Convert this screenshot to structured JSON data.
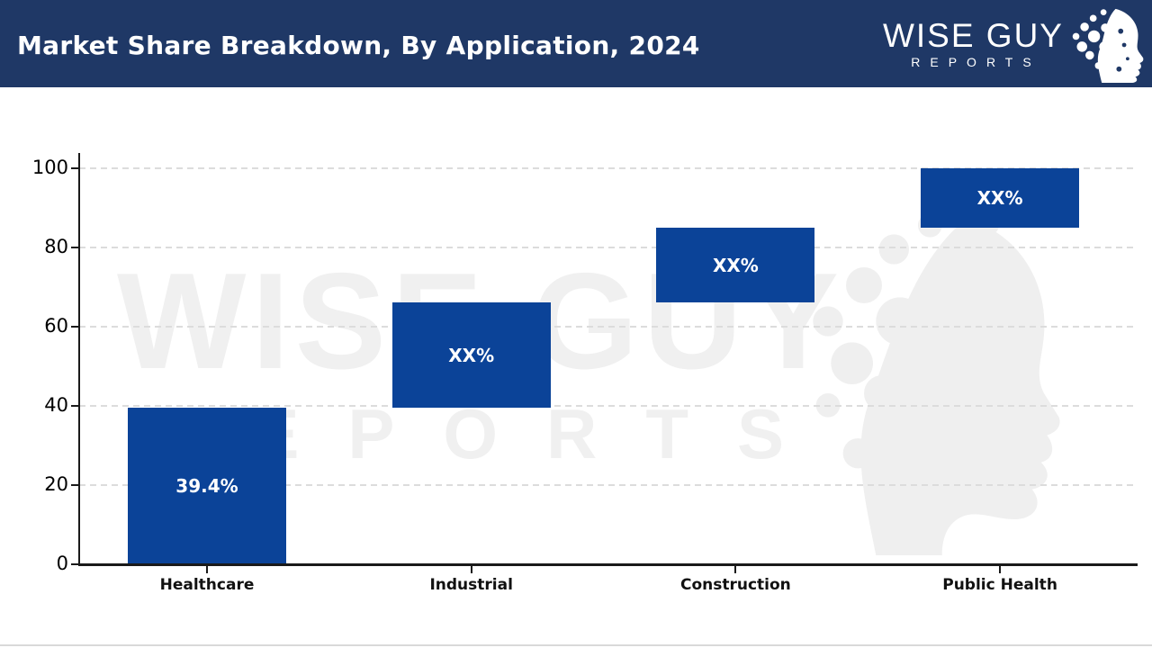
{
  "header": {
    "title": "Market Share Breakdown, By Application, 2024",
    "bg_color": "#1f3866",
    "logo": {
      "line1": "WISE GUY",
      "line2": "REPORTS"
    }
  },
  "watermark": {
    "line1": "WISE GUY",
    "line2": "REPORTS"
  },
  "chart_data": {
    "type": "bar",
    "subtype": "waterfall",
    "title": "Market Share Breakdown, By Application, 2024",
    "categories": [
      "Healthcare",
      "Industrial",
      "Construction",
      "Public Health"
    ],
    "starts": [
      0,
      39.4,
      66.0,
      84.8
    ],
    "values": [
      39.4,
      26.6,
      18.8,
      15.2
    ],
    "bar_labels": [
      "39.4%",
      "XX%",
      "XX%",
      "XX%"
    ],
    "xlabel": "",
    "ylabel": "",
    "ylim": [
      0,
      100
    ],
    "yticks": [
      0,
      20,
      40,
      60,
      80,
      100
    ],
    "grid": "horizontal-dashed",
    "legend": "none",
    "bar_color": "#0b4398",
    "label_color": "#ffffff"
  }
}
